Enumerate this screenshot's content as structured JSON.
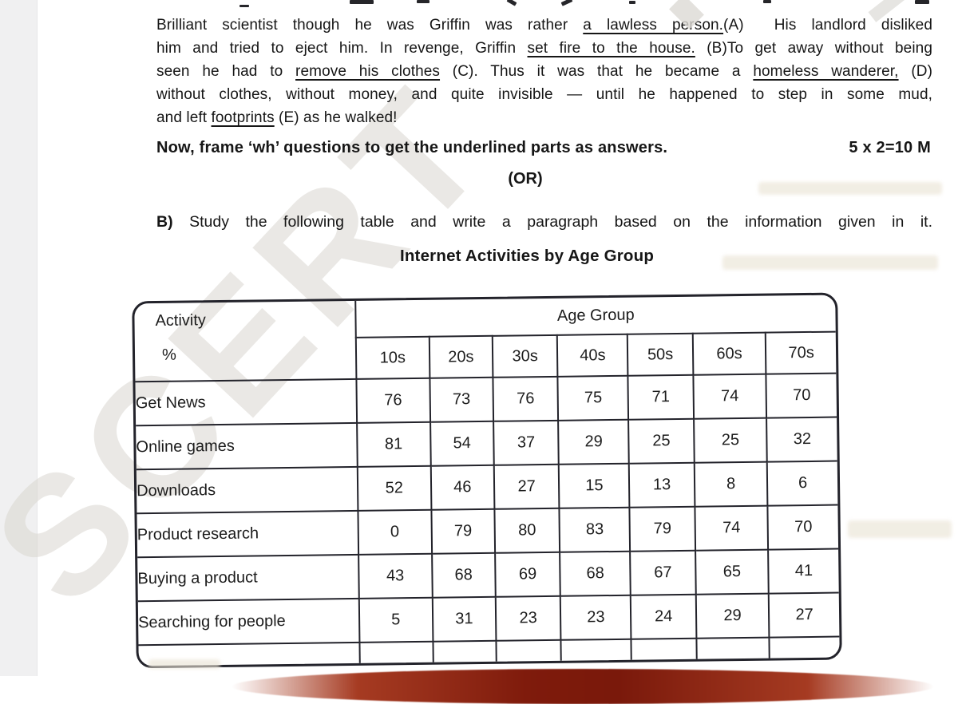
{
  "page": {
    "watermark_text": "SCERT",
    "watermark_color": "#dad7d0",
    "red_stamp_color": "#7f1b0c"
  },
  "paragraph": {
    "lines": [
      {
        "justify": true,
        "segments": [
          {
            "text": "Brilliant scientist though he was Griffin was rather "
          },
          {
            "text": "a lawless person.",
            "underline": true
          },
          {
            "text": "(A)  His landlord disliked"
          }
        ]
      },
      {
        "justify": true,
        "segments": [
          {
            "text": "him and tried to eject him. In revenge, Griffin "
          },
          {
            "text": "set fire to the house.",
            "underline": true
          },
          {
            "text": " (B)To get away without being"
          }
        ]
      },
      {
        "justify": true,
        "segments": [
          {
            "text": "seen he had to "
          },
          {
            "text": "remove his clothes",
            "underline": true
          },
          {
            "text": " (C). Thus it was that he became a "
          },
          {
            "text": "homeless wanderer,",
            "underline": true
          },
          {
            "text": " (D)"
          }
        ]
      },
      {
        "justify": true,
        "segments": [
          {
            "text": "without clothes, without money, and quite invisible — until he happened to step in some mud,"
          }
        ]
      },
      {
        "justify": false,
        "segments": [
          {
            "text": "and left "
          },
          {
            "text": "footprints",
            "underline": true
          },
          {
            "text": " (E) as he walked!"
          }
        ]
      }
    ]
  },
  "instruction": {
    "text": "Now, frame ‘wh’ questions to get the underlined parts as answers.",
    "marks": "5 x 2=10 M"
  },
  "or_divider": "(OR)",
  "section_b": {
    "label": "B)",
    "text": "Study the following table and write a paragraph based on the information given in it."
  },
  "table": {
    "title": "Internet Activities by Age Group",
    "header": {
      "activity": "Activity",
      "percent": "%",
      "age_group": "Age Group",
      "age_columns": [
        "10s",
        "20s",
        "30s",
        "40s",
        "50s",
        "60s",
        "70s"
      ]
    },
    "rows": [
      {
        "activity": "Get News",
        "values": [
          "76",
          "73",
          "76",
          "75",
          "71",
          "74",
          "70"
        ]
      },
      {
        "activity": "Online games",
        "values": [
          "81",
          "54",
          "37",
          "29",
          "25",
          "25",
          "32"
        ]
      },
      {
        "activity": "Downloads",
        "values": [
          "52",
          "46",
          "27",
          "15",
          "13",
          "8",
          "6"
        ]
      },
      {
        "activity": "Product research",
        "values": [
          "0",
          "79",
          "80",
          "83",
          "79",
          "74",
          "70"
        ]
      },
      {
        "activity": "Buying a product",
        "values": [
          "43",
          "68",
          "69",
          "68",
          "67",
          "65",
          "41"
        ]
      },
      {
        "activity": "Searching for people",
        "values": [
          "5",
          "31",
          "23",
          "23",
          "24",
          "29",
          "27"
        ]
      }
    ]
  }
}
